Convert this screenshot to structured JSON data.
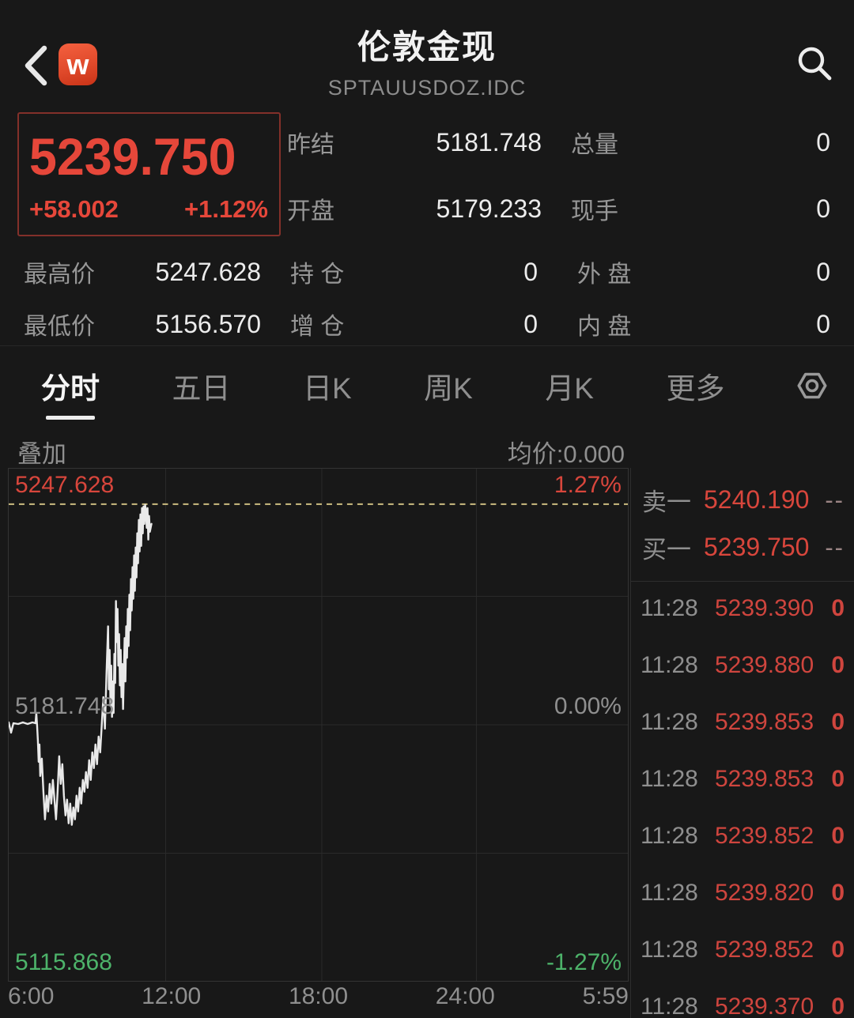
{
  "header": {
    "title": "伦敦金现",
    "subtitle": "SPTAUUSDOZ.IDC",
    "logo_letter": "w"
  },
  "quote": {
    "last": "5239.750",
    "change": "+58.002",
    "change_pct": "+1.12%",
    "prev_close_label": "昨结",
    "prev_close": "5181.748",
    "volume_label": "总量",
    "volume": "0",
    "open_label": "开盘",
    "open": "5179.233",
    "cur_vol_label": "现手",
    "cur_vol": "0",
    "high_label": "最高价",
    "high": "5247.628",
    "oi_label": "持 仓",
    "oi": "0",
    "outer_label": "外 盘",
    "outer": "0",
    "low_label": "最低价",
    "low": "5156.570",
    "oi_chg_label": "增 仓",
    "oi_chg": "0",
    "inner_label": "内 盘",
    "inner": "0"
  },
  "tabs": {
    "t0": "分时",
    "t1": "五日",
    "t2": "日K",
    "t3": "周K",
    "t4": "月K",
    "t5": "更多"
  },
  "overlay_bar": {
    "overlay": "叠加",
    "avg": "均价:0.000"
  },
  "chart": {
    "type": "line",
    "high_label": "5247.628",
    "high_pct": "1.27%",
    "mid_label": "5181.748",
    "mid_pct": "0.00%",
    "low_label": "5115.868",
    "low_pct": "-1.27%",
    "x0": "6:00",
    "x1": "12:00",
    "x2": "18:00",
    "x3": "24:00",
    "x4": "5:59",
    "line_color": "#e9e9e9",
    "dash_line_color": "#cbbc80",
    "up_color": "#d8463c",
    "down_color": "#4db36a",
    "line_points": [
      [
        0,
        322
      ],
      [
        3,
        335
      ],
      [
        6,
        323
      ],
      [
        12,
        324
      ],
      [
        18,
        322
      ],
      [
        24,
        324
      ],
      [
        30,
        322
      ],
      [
        34,
        323
      ],
      [
        35,
        310
      ],
      [
        36,
        326
      ],
      [
        37,
        345
      ],
      [
        38,
        372
      ],
      [
        39,
        350
      ],
      [
        40,
        390
      ],
      [
        42,
        368
      ],
      [
        44,
        410
      ],
      [
        46,
        445
      ],
      [
        48,
        415
      ],
      [
        50,
        435
      ],
      [
        52,
        400
      ],
      [
        54,
        425
      ],
      [
        56,
        395
      ],
      [
        58,
        420
      ],
      [
        60,
        445
      ],
      [
        62,
        410
      ],
      [
        64,
        365
      ],
      [
        66,
        400
      ],
      [
        68,
        375
      ],
      [
        70,
        415
      ],
      [
        72,
        440
      ],
      [
        74,
        420
      ],
      [
        76,
        450
      ],
      [
        78,
        425
      ],
      [
        80,
        452
      ],
      [
        82,
        430
      ],
      [
        84,
        445
      ],
      [
        86,
        415
      ],
      [
        88,
        435
      ],
      [
        90,
        405
      ],
      [
        92,
        425
      ],
      [
        94,
        395
      ],
      [
        96,
        410
      ],
      [
        98,
        385
      ],
      [
        100,
        405
      ],
      [
        102,
        370
      ],
      [
        104,
        395
      ],
      [
        106,
        360
      ],
      [
        108,
        380
      ],
      [
        110,
        350
      ],
      [
        112,
        375
      ],
      [
        114,
        340
      ],
      [
        116,
        360
      ],
      [
        118,
        325
      ],
      [
        120,
        290
      ],
      [
        122,
        330
      ],
      [
        124,
        260
      ],
      [
        126,
        200
      ],
      [
        127,
        280
      ],
      [
        128,
        230
      ],
      [
        129,
        300
      ],
      [
        130,
        250
      ],
      [
        131,
        315
      ],
      [
        132,
        270
      ],
      [
        133,
        310
      ],
      [
        134,
        235
      ],
      [
        135,
        272
      ],
      [
        136,
        168
      ],
      [
        137,
        220
      ],
      [
        138,
        178
      ],
      [
        139,
        250
      ],
      [
        140,
        210
      ],
      [
        141,
        275
      ],
      [
        142,
        230
      ],
      [
        143,
        290
      ],
      [
        144,
        248
      ],
      [
        145,
        305
      ],
      [
        146,
        260
      ],
      [
        147,
        215
      ],
      [
        148,
        270
      ],
      [
        149,
        200
      ],
      [
        150,
        240
      ],
      [
        151,
        178
      ],
      [
        152,
        225
      ],
      [
        153,
        160
      ],
      [
        154,
        205
      ],
      [
        155,
        140
      ],
      [
        156,
        180
      ],
      [
        157,
        125
      ],
      [
        158,
        165
      ],
      [
        159,
        110
      ],
      [
        160,
        155
      ],
      [
        161,
        100
      ],
      [
        162,
        138
      ],
      [
        163,
        82
      ],
      [
        164,
        120
      ],
      [
        165,
        65
      ],
      [
        166,
        105
      ],
      [
        167,
        58
      ],
      [
        168,
        98
      ],
      [
        169,
        50
      ],
      [
        170,
        82
      ],
      [
        171,
        48
      ],
      [
        172,
        70
      ],
      [
        173,
        46
      ],
      [
        174,
        55
      ],
      [
        175,
        75
      ],
      [
        176,
        50
      ],
      [
        177,
        90
      ],
      [
        178,
        60
      ],
      [
        179,
        80
      ],
      [
        181,
        70
      ]
    ]
  },
  "order_book": {
    "ask_label": "卖一",
    "ask_price": "5240.190",
    "ask_qty": "--",
    "bid_label": "买一",
    "bid_price": "5239.750",
    "bid_qty": "--"
  },
  "ticks": [
    {
      "time": "11:28",
      "price": "5239.390",
      "qty": "0"
    },
    {
      "time": "11:28",
      "price": "5239.880",
      "qty": "0"
    },
    {
      "time": "11:28",
      "price": "5239.853",
      "qty": "0"
    },
    {
      "time": "11:28",
      "price": "5239.853",
      "qty": "0"
    },
    {
      "time": "11:28",
      "price": "5239.852",
      "qty": "0"
    },
    {
      "time": "11:28",
      "price": "5239.820",
      "qty": "0"
    },
    {
      "time": "11:28",
      "price": "5239.852",
      "qty": "0"
    },
    {
      "time": "11:28",
      "price": "5239.370",
      "qty": "0"
    }
  ]
}
